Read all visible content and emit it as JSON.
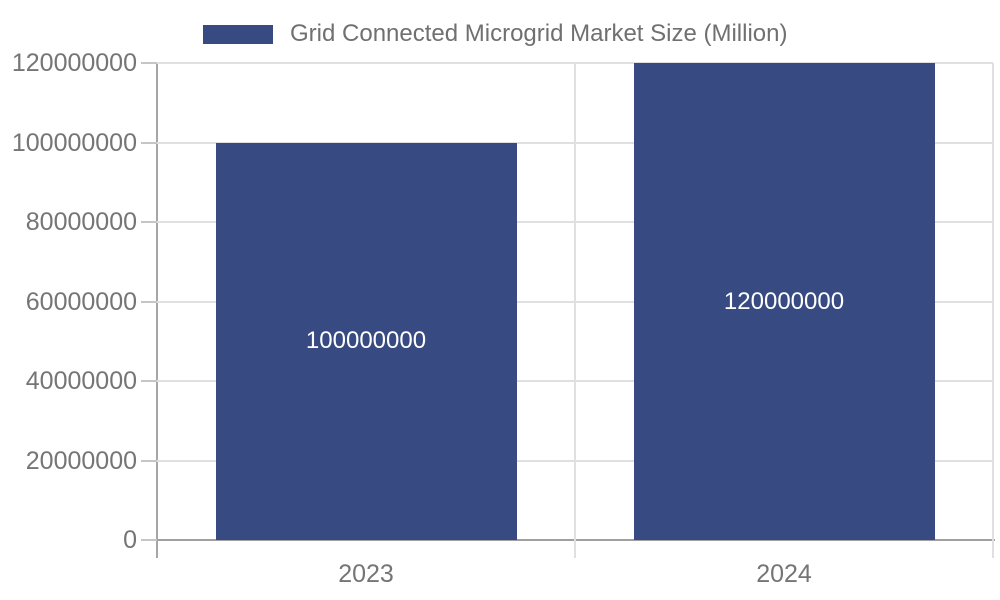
{
  "legend": {
    "label": "Grid Connected Microgrid Market Size (Million)"
  },
  "chart_data": {
    "type": "bar",
    "title": "",
    "categories": [
      "2023",
      "2024"
    ],
    "series": [
      {
        "name": "Grid Connected Microgrid Market Size (Million)",
        "values": [
          100000000,
          120000000
        ],
        "data_labels": [
          "100000000",
          "120000000"
        ]
      }
    ],
    "xlabel": "",
    "ylabel": "",
    "ylim": [
      0,
      120000000
    ],
    "yticks": [
      0,
      20000000,
      40000000,
      60000000,
      80000000,
      100000000,
      120000000
    ],
    "ytick_labels": [
      "0",
      "20000000",
      "40000000",
      "60000000",
      "80000000",
      "100000000",
      "120000000"
    ],
    "grid": true,
    "legend_position": "top",
    "data_label_position": "inside-center",
    "colors": {
      "bar": "#374B82",
      "gridline": "#E0E0E0",
      "axis_line": "#A6A6A6",
      "tick_label": "#757575",
      "data_label": "#FFFFFF",
      "background": "#FFFFFF"
    }
  }
}
